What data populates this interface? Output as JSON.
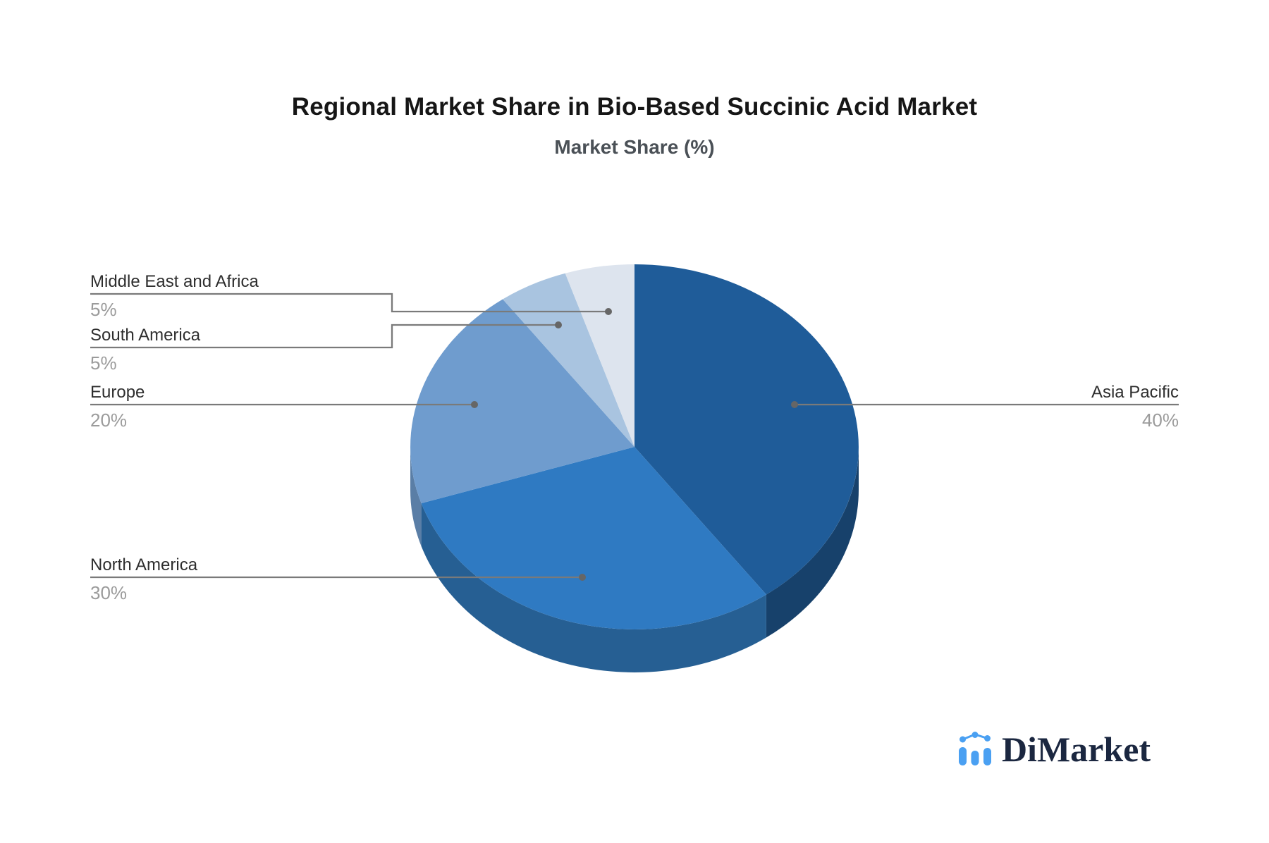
{
  "chart_data": {
    "type": "pie",
    "style": "3d",
    "title": "Regional Market Share in Bio-Based Succinic Acid Market",
    "subtitle": "Market Share (%)",
    "unit": "%",
    "start_angle": "12 o'clock, clockwise",
    "legend": "none (leader-line labels)",
    "slices": [
      {
        "label": "Asia Pacific",
        "value": 40,
        "display": "40%",
        "color": "#1F5C99",
        "side_color": "#17416B"
      },
      {
        "label": "North America",
        "value": 30,
        "display": "30%",
        "color": "#2F7AC2",
        "side_color": "#265F93"
      },
      {
        "label": "Europe",
        "value": 20,
        "display": "20%",
        "color": "#6F9CCE",
        "side_color": "#5A7EA6"
      },
      {
        "label": "South America",
        "value": 5,
        "display": "5%",
        "color": "#A9C4E0",
        "side_color": "#8CA6C1"
      },
      {
        "label": "Middle East and Africa",
        "value": 5,
        "display": "5%",
        "color": "#DDE4EE",
        "side_color": "#B9C4D2"
      }
    ],
    "label_text_color": "#2e2e2e",
    "percent_text_color": "#9b9b9b",
    "connector_color": "#7a7a7a"
  },
  "logo": {
    "text": "DiMarket",
    "icon": "bar-chart-with-trend-dots",
    "accent_color": "#4AA0F2",
    "text_color": "#1B2740"
  }
}
